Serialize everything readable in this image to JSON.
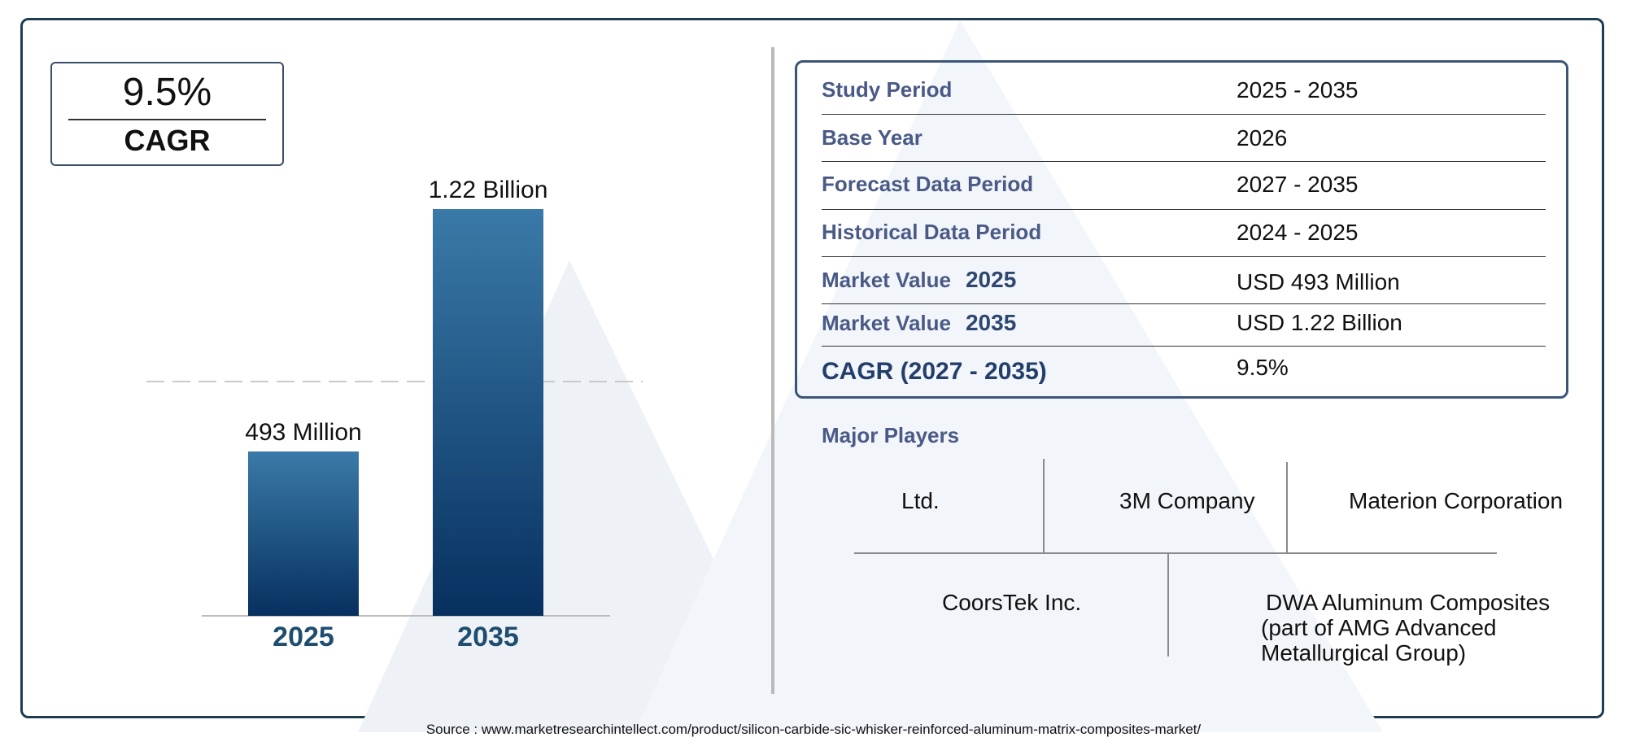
{
  "cagr_box": {
    "value": "9.5%",
    "label": "CAGR"
  },
  "chart_data": {
    "type": "bar",
    "categories": [
      "2025",
      "2035"
    ],
    "values": [
      493,
      1220
    ],
    "data_labels": [
      "493 Million",
      "1.22 Billion"
    ],
    "title": "",
    "xlabel": "",
    "ylabel": "",
    "units": "USD Million",
    "colors": {
      "bar_top": "#3a7aa8",
      "bar_bottom": "#07305f",
      "category_label": "#1e4d70"
    }
  },
  "info_table": [
    {
      "label": "Study Period",
      "value": "2025 - 2035"
    },
    {
      "label": "Base Year",
      "value": "2026"
    },
    {
      "label": "Forecast Data Period",
      "value": "2027 - 2035"
    },
    {
      "label": "Historical Data Period",
      "value": "2024 - 2025"
    },
    {
      "label": "Market Value",
      "year": "2025",
      "value": "USD 493 Million"
    },
    {
      "label": "Market Value",
      "year": "2035",
      "value": "USD 1.22 Billion"
    },
    {
      "label": "CAGR (2027 - 2035)",
      "value": "9.5%"
    }
  ],
  "major_players": {
    "title": "Major Players",
    "row1": [
      "Ltd.",
      "3M Company",
      "Materion Corporation"
    ],
    "row2": [
      "CoorsTek Inc.",
      "DWA Aluminum Composites",
      "(part of AMG Advanced",
      "Metallurgical Group)"
    ]
  },
  "source": "Source : www.marketresearchintellect.com/product/silicon-carbide-sic-whisker-reinforced-aluminum-matrix-composites-market/"
}
